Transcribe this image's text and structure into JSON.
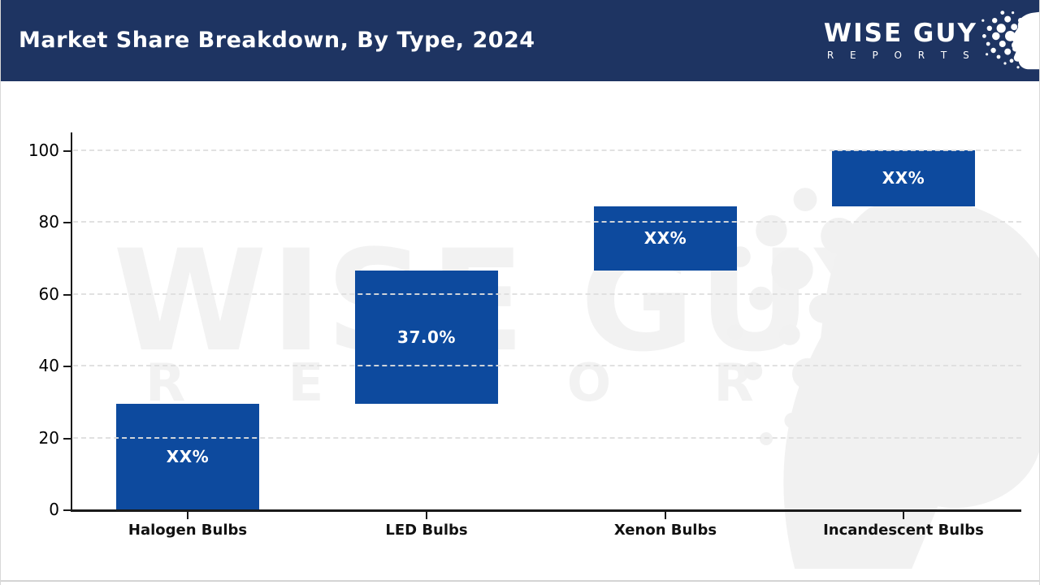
{
  "header": {
    "title": "Market Share Breakdown, By Type, 2024",
    "logo": {
      "line1": "WISE GUY",
      "line2": "R E P O R T S"
    }
  },
  "watermark": {
    "line1": "WISE GUY",
    "line2": "R E P O R T S"
  },
  "colors": {
    "header_bg": "#1e3462",
    "bar_fill": "#0d4a9e",
    "bar_label": "#ffffff",
    "axis": "#1a1a1a",
    "gridline": "#dedede",
    "watermark": "#f2f2f2"
  },
  "chart_data": {
    "type": "bar",
    "variant": "floating-waterfall",
    "title": "Market Share Breakdown, By Type, 2024",
    "categories": [
      "Halogen Bulbs",
      "LED Bulbs",
      "Xenon Bulbs",
      "Incandescent Bulbs"
    ],
    "series": [
      {
        "name": "Market Share (%)",
        "bars": [
          {
            "category": "Halogen Bulbs",
            "start": 0,
            "end": 29.5,
            "label": "XX%"
          },
          {
            "category": "LED Bulbs",
            "start": 29.5,
            "end": 66.5,
            "value": 37.0,
            "label": "37.0%"
          },
          {
            "category": "Xenon Bulbs",
            "start": 66.5,
            "end": 84.5,
            "label": "XX%"
          },
          {
            "category": "Incandescent Bulbs",
            "start": 84.5,
            "end": 100,
            "label": "XX%"
          }
        ]
      }
    ],
    "ylim": [
      0,
      100
    ],
    "yticks": [
      0,
      20,
      40,
      60,
      80,
      100
    ],
    "grid": {
      "horizontal": true,
      "style": "dashed"
    },
    "legend_position": "none"
  }
}
